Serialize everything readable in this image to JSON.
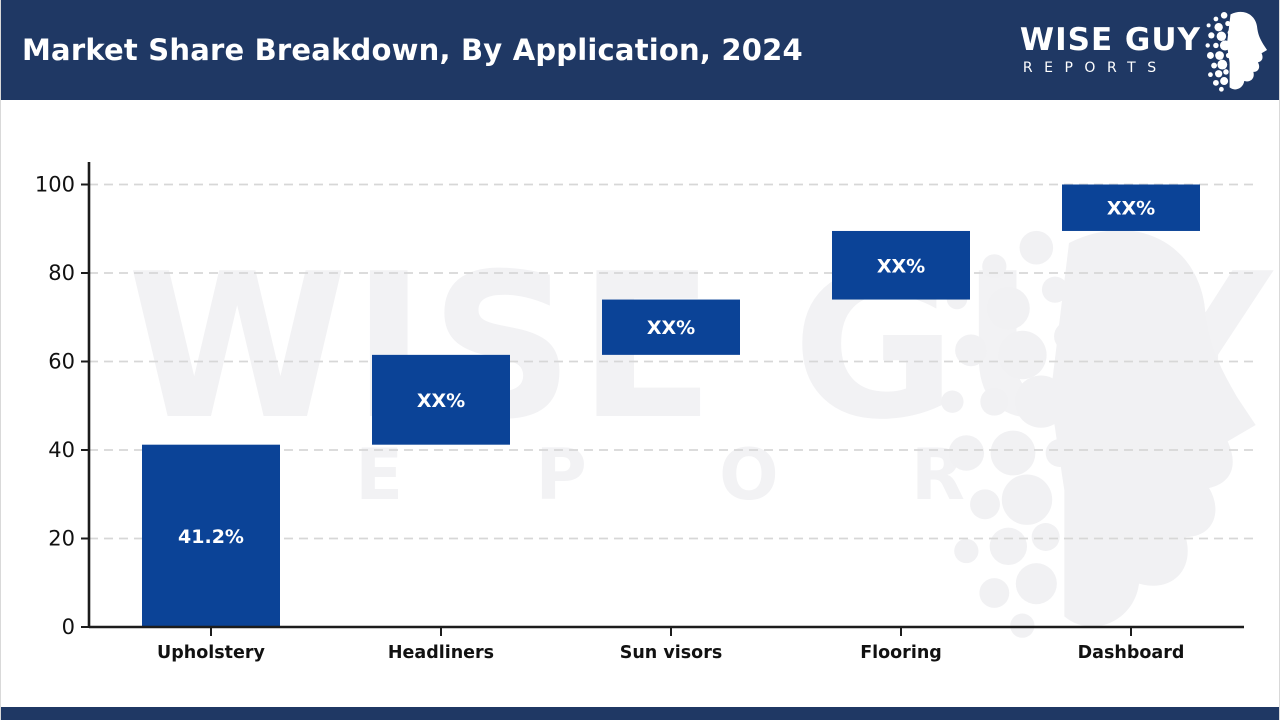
{
  "header": {
    "title": "Market Share Breakdown, By Application, 2024",
    "logo": {
      "line1": "WISE GUY",
      "line2": "REPORTS"
    }
  },
  "watermark": {
    "line1": "WISE GUY",
    "line2": "R E P O R T S"
  },
  "footer": {},
  "colors": {
    "header_bg": "#1f3864",
    "footer_bg": "#1f3864",
    "bar": "#0b4397",
    "bar_label": "#ffffff",
    "grid": "#d7d7d7",
    "axis": "#1c1c1c",
    "tick_label": "#111111",
    "watermark": "#f2f2f4"
  },
  "chart_data": {
    "type": "bar",
    "subtype": "waterfall",
    "title": "Market Share Breakdown, By Application, 2024",
    "xlabel": "",
    "ylabel": "",
    "categories": [
      "Upholstery",
      "Headliners",
      "Sun visors",
      "Flooring",
      "Dashboard"
    ],
    "values": [
      41.2,
      20.3,
      12.5,
      15.5,
      10.5
    ],
    "cumulative_start": [
      0,
      41.2,
      61.5,
      74.0,
      89.5
    ],
    "cumulative_end": [
      41.2,
      61.5,
      74.0,
      89.5,
      100.0
    ],
    "bar_labels": [
      "41.2%",
      "XX%",
      "XX%",
      "XX%",
      "XX%"
    ],
    "y_ticks": [
      0,
      20,
      40,
      60,
      80,
      100
    ],
    "ylim": [
      0,
      105
    ],
    "grid": "horizontal-dashed",
    "legend": "none"
  }
}
